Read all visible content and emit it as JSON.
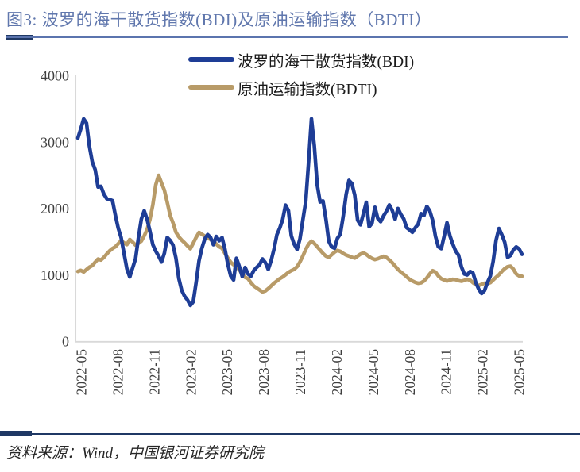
{
  "title": {
    "text": "图3: 波罗的海干散货指数(BDI)及原油运输指数（BDTI）"
  },
  "footer": {
    "source_label": "资料来源：Wind，中国银河证券研究院"
  },
  "colors": {
    "bdi_blue": "#1e3d96",
    "bdti_tan": "#b89b68",
    "title_blue": "#6077ad",
    "title_rule": "#5b74ae",
    "dark_rule": "#1f3864",
    "axis_text": "#3f3f3f",
    "axis_line": "#d9d9d9"
  },
  "chart_data": {
    "type": "line",
    "title": "",
    "xlabel": "",
    "ylabel": "",
    "ylim": [
      0,
      4000
    ],
    "grid": false,
    "legend_position": "top-left",
    "x_ticks": [
      "2022-05",
      "2022-08",
      "2022-11",
      "2023-02",
      "2023-05",
      "2023-08",
      "2023-11",
      "2024-02",
      "2024-05",
      "2024-08",
      "2024-11",
      "2025-02",
      "2025-05"
    ],
    "y_ticks": [
      0,
      1000,
      2000,
      3000,
      4000
    ],
    "sampling": "weekly",
    "series": [
      {
        "key": "bdi",
        "name": "波罗的海干散货指数(BDI)",
        "color": "#1e3d96",
        "values": [
          3055,
          3190,
          3344,
          3280,
          2936,
          2700,
          2580,
          2320,
          2330,
          2214,
          2145,
          2130,
          2115,
          1895,
          1700,
          1560,
          1320,
          1088,
          965,
          1105,
          1240,
          1553,
          1838,
          1960,
          1835,
          1656,
          1450,
          1355,
          1281,
          1190,
          1324,
          1559,
          1515,
          1445,
          1250,
          946,
          764,
          676,
          621,
          538,
          592,
          880,
          1211,
          1400,
          1535,
          1603,
          1560,
          1451,
          1576,
          1510,
          1558,
          1384,
          1155,
          980,
          920,
          1246,
          1121,
          972,
          1108,
          1010,
          977,
          1062,
          1110,
          1150,
          1237,
          1183,
          1080,
          1210,
          1381,
          1601,
          1701,
          1827,
          2046,
          1965,
          1585,
          1460,
          1380,
          1538,
          1820,
          2102,
          2696,
          3346,
          2937,
          2348,
          2094,
          2110,
          1836,
          1503,
          1418,
          1398,
          1547,
          1609,
          1871,
          2203,
          2419,
          2374,
          2196,
          1821,
          1750,
          1919,
          2089,
          1721,
          1774,
          2014,
          1846,
          1797,
          1886,
          1955,
          2050,
          1966,
          1834,
          1997,
          1908,
          1839,
          1708,
          1675,
          1637,
          1706,
          1760,
          1919,
          1890,
          2027,
          1963,
          1820,
          1576,
          1420,
          1391,
          1578,
          1783,
          1585,
          1460,
          1355,
          1296,
          1116,
          1010,
          997,
          1048,
          1026,
          880,
          780,
          716,
          760,
          880,
          978,
          1200,
          1515,
          1695,
          1602,
          1489,
          1261,
          1288,
          1373,
          1419,
          1388,
          1306
        ]
      },
      {
        "key": "bdti",
        "name": "原油运输指数(BDTI)",
        "color": "#b89b68",
        "values": [
          1048,
          1065,
          1040,
          1077,
          1113,
          1135,
          1188,
          1235,
          1220,
          1260,
          1311,
          1358,
          1395,
          1420,
          1466,
          1510,
          1480,
          1452,
          1530,
          1490,
          1445,
          1470,
          1506,
          1585,
          1680,
          1830,
          2055,
          2350,
          2496,
          2380,
          2270,
          2090,
          1890,
          1779,
          1640,
          1570,
          1520,
          1480,
          1434,
          1390,
          1474,
          1560,
          1636,
          1608,
          1580,
          1553,
          1530,
          1500,
          1462,
          1420,
          1398,
          1320,
          1250,
          1187,
          1150,
          1125,
          1070,
          1010,
          960,
          940,
          880,
          830,
          800,
          770,
          742,
          755,
          790,
          830,
          870,
          905,
          940,
          965,
          1000,
          1035,
          1060,
          1080,
          1120,
          1190,
          1280,
          1380,
          1460,
          1505,
          1470,
          1420,
          1370,
          1320,
          1280,
          1260,
          1300,
          1340,
          1365,
          1350,
          1320,
          1295,
          1280,
          1262,
          1250,
          1280,
          1310,
          1330,
          1305,
          1270,
          1245,
          1228,
          1240,
          1258,
          1277,
          1260,
          1222,
          1180,
          1130,
          1080,
          1040,
          1005,
          968,
          930,
          905,
          885,
          870,
          878,
          905,
          950,
          1010,
          1060,
          1040,
          980,
          940,
          920,
          905,
          918,
          930,
          925,
          910,
          902,
          915,
          930,
          918,
          880,
          850,
          838,
          855,
          872,
          862,
          880,
          920,
          960,
          1000,
          1048,
          1090,
          1120,
          1128,
          1085,
          1010,
          980,
          975
        ]
      }
    ]
  }
}
